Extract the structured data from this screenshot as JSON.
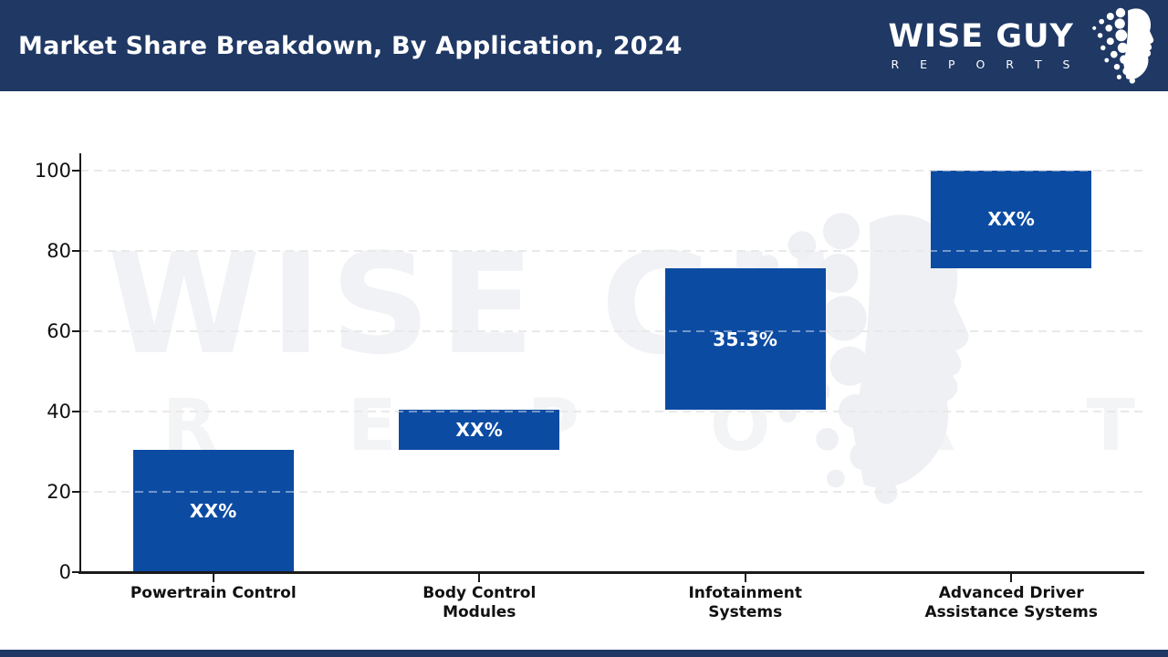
{
  "header": {
    "title": "Market Share Breakdown, By Application, 2024",
    "brand": {
      "line1": "WISE GUY",
      "line2": "R E P O R T S"
    }
  },
  "watermark": {
    "line1": "WISE GU",
    "line2": "R E P O R T S"
  },
  "colors": {
    "header_bg": "#1f3864",
    "bar": "#0c4ba2",
    "grid": "#d9d9d9",
    "axis": "#1a1a1a",
    "text": "#111111",
    "watermark": "#f1f2f5",
    "watermark2": "#f3f4f6"
  },
  "chart_data": {
    "type": "bar",
    "subtype": "floating-waterfall",
    "title": "Market Share Breakdown, By Application, 2024",
    "xlabel": "",
    "ylabel": "",
    "ylim": [
      0,
      100
    ],
    "yticks": [
      0,
      20,
      40,
      60,
      80,
      100
    ],
    "grid": "horizontal dashed",
    "legend": "none",
    "categories": [
      "Powertrain Control",
      "Body Control Modules",
      "Infotainment Systems",
      "Advanced Driver Assistance Systems"
    ],
    "category_label_lines": [
      [
        "Powertrain Control"
      ],
      [
        "Body Control",
        "Modules"
      ],
      [
        "Infotainment",
        "Systems"
      ],
      [
        "Advanced Driver",
        "Assistance Systems"
      ]
    ],
    "segments": [
      {
        "category": "Powertrain Control",
        "from": 0,
        "to": 30.4,
        "label": "XX%"
      },
      {
        "category": "Body Control Modules",
        "from": 30.4,
        "to": 40.4,
        "label": "XX%"
      },
      {
        "category": "Infotainment Systems",
        "from": 40.4,
        "to": 75.7,
        "label": "35.3%"
      },
      {
        "category": "Advanced Driver Assistance Systems",
        "from": 75.7,
        "to": 100,
        "label": "XX%"
      }
    ]
  }
}
